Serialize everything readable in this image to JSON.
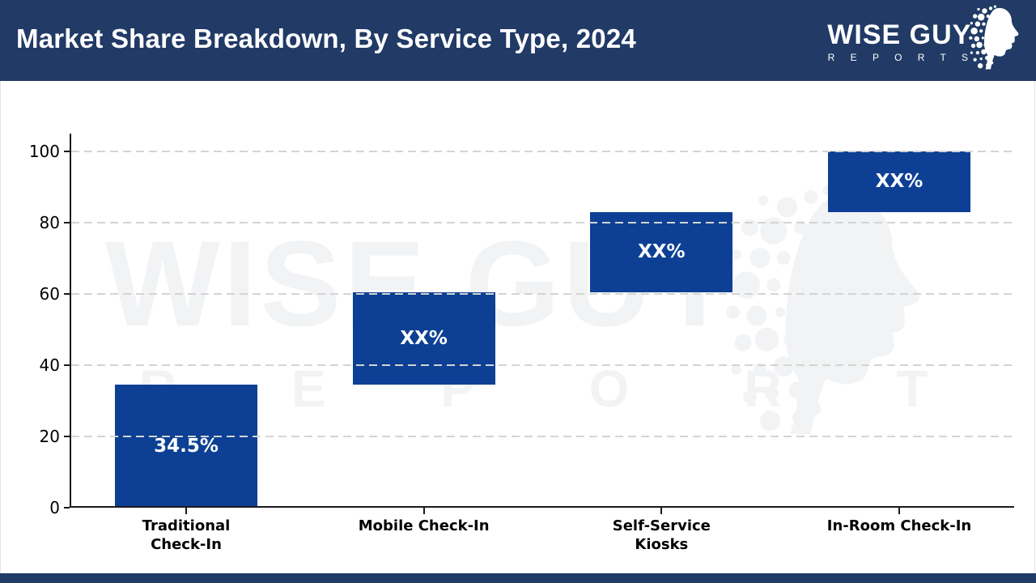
{
  "header": {
    "title": "Market Share Breakdown, By Service Type, 2024",
    "logo": {
      "name_line": "WISE GUY",
      "sub_line": "R E P O R T S"
    }
  },
  "watermark": {
    "line1": "WISE GUY",
    "line2": "R E P O R T S"
  },
  "chart_data": {
    "type": "bar",
    "subtype": "waterfall-floating-segments",
    "title": "Market Share Breakdown, By Service Type, 2024",
    "categories": [
      "Traditional Check-In",
      "Mobile Check-In",
      "Self-Service Kiosks",
      "In-Room Check-In"
    ],
    "segments": [
      {
        "start": 0,
        "end": 34.5
      },
      {
        "start": 34.5,
        "end": 60.5
      },
      {
        "start": 60.5,
        "end": 83
      },
      {
        "start": 83,
        "end": 100
      }
    ],
    "bar_labels": [
      "34.5%",
      "XX%",
      "XX%",
      "XX%"
    ],
    "yticks": [
      0,
      20,
      40,
      60,
      80,
      100
    ],
    "ylim": [
      0,
      105
    ],
    "xlabel": "",
    "ylabel": "",
    "grid": "horizontal-dashed-above-bars",
    "legend": "none",
    "bar_color": "#0d4094"
  },
  "colors": {
    "header_bg": "#213a66",
    "footer_bg": "#213a66",
    "bar": "#0d4094",
    "watermark": "#f2f3f5",
    "grid": "#d4d4d4",
    "axis": "#1a1a1a",
    "title_text": "#ffffff"
  }
}
